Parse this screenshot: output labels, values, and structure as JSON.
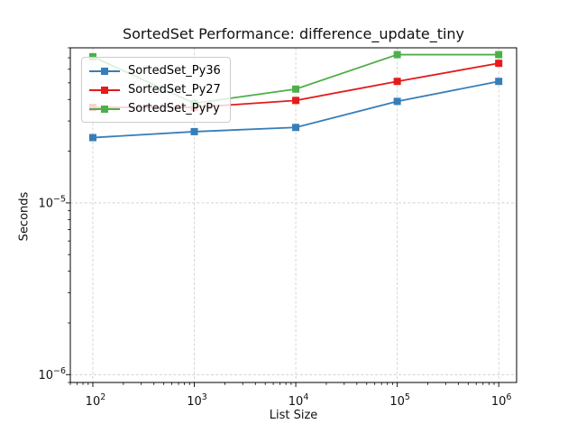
{
  "chart_data": {
    "type": "line",
    "title": "SortedSet Performance: difference_update_tiny",
    "xlabel": "List Size",
    "ylabel": "Seconds",
    "x_scale": "log",
    "y_scale": "log",
    "x": [
      100,
      1000,
      10000,
      100000,
      1000000
    ],
    "series": [
      {
        "name": "SortedSet_Py36",
        "color": "#377eb8",
        "values": [
          2.4e-05,
          2.6e-05,
          2.75e-05,
          3.9e-05,
          5.1e-05
        ]
      },
      {
        "name": "SortedSet_Py27",
        "color": "#e41a1c",
        "values": [
          3.6e-05,
          3.6e-05,
          3.95e-05,
          5.1e-05,
          6.5e-05
        ]
      },
      {
        "name": "SortedSet_PyPy",
        "color": "#4daf4a",
        "values": [
          7.1e-05,
          3.8e-05,
          4.6e-05,
          7.3e-05,
          7.3e-05
        ]
      }
    ],
    "xlim": [
      60,
      1500000
    ],
    "ylim": [
      9e-07,
      8e-05
    ],
    "x_ticks": [
      {
        "v": 100,
        "label": "10^2"
      },
      {
        "v": 1000,
        "label": "10^3"
      },
      {
        "v": 10000,
        "label": "10^4"
      },
      {
        "v": 100000,
        "label": "10^5"
      },
      {
        "v": 1000000,
        "label": "10^6"
      }
    ],
    "y_ticks": [
      {
        "v": 1e-06,
        "label": "10^-6"
      },
      {
        "v": 1e-05,
        "label": "10^-5"
      }
    ],
    "grid": {
      "show": true,
      "style": "dashed",
      "color": "#cccccc"
    },
    "legend": {
      "position": "upper-left",
      "entries": [
        "SortedSet_Py36",
        "SortedSet_Py27",
        "SortedSet_PyPy"
      ]
    },
    "marker": "square",
    "line_width": 1.8,
    "frame_color": "#000000"
  }
}
